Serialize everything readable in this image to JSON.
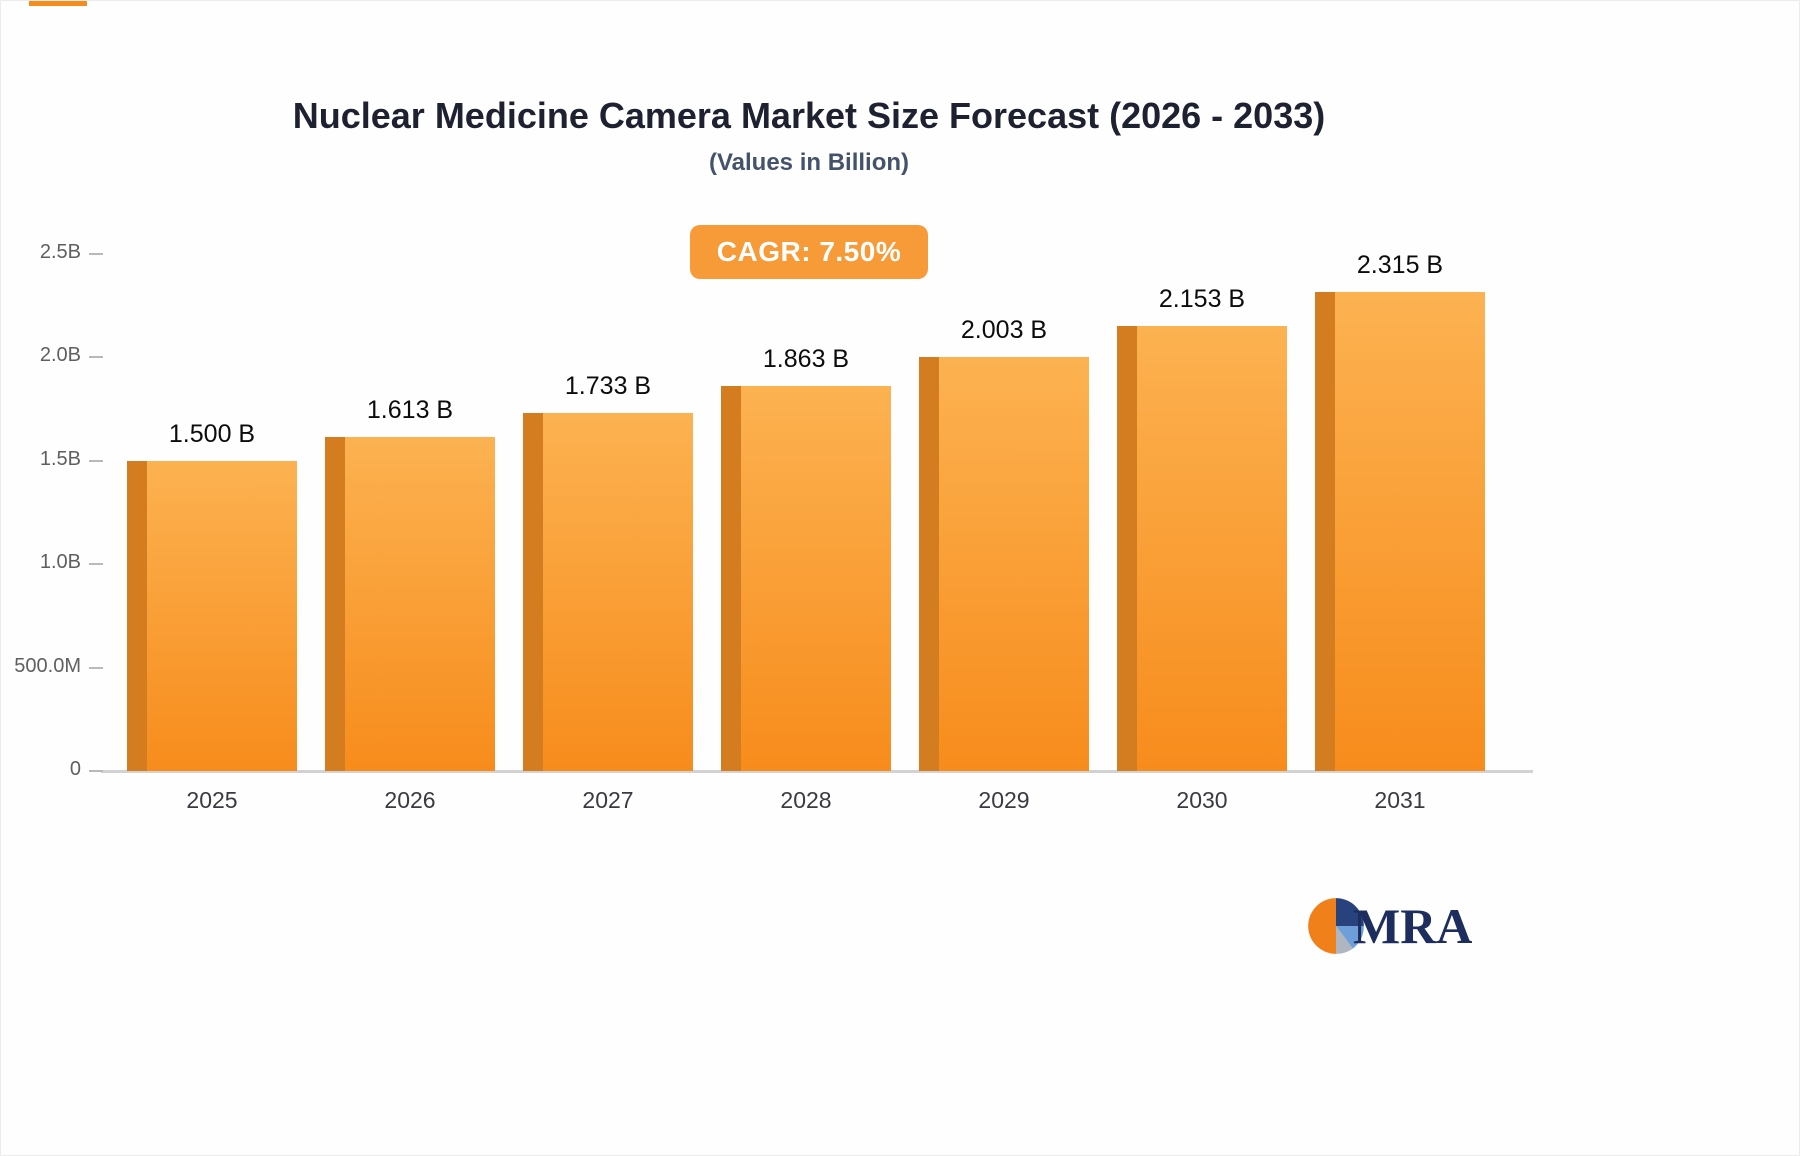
{
  "header": {
    "title": "Nuclear Medicine Camera Market Size Forecast (2026 - 2033)",
    "subtitle": "(Values in Billion)",
    "cagr_badge": "CAGR: 7.50%"
  },
  "chart_data": {
    "type": "bar",
    "title": "Nuclear Medicine Camera Market Size Forecast (2026 - 2033)",
    "subtitle": "(Values in Billion)",
    "annotation": "CAGR: 7.50%",
    "categories": [
      "2025",
      "2026",
      "2027",
      "2028",
      "2029",
      "2030",
      "2031"
    ],
    "values": [
      1.5,
      1.613,
      1.733,
      1.863,
      2.003,
      2.153,
      2.315
    ],
    "value_labels": [
      "1.500 B",
      "1.613 B",
      "1.733 B",
      "1.863 B",
      "2.003 B",
      "2.153 B",
      "2.315 B"
    ],
    "xlabel": "",
    "ylabel": "",
    "ylim": [
      0,
      2.5
    ],
    "ytick_values": [
      2.5,
      2.0,
      1.5,
      1.0,
      0.5,
      0
    ],
    "ytick_labels": [
      "2.5B",
      "2.0B",
      "1.5B",
      "1.0B",
      "500.0M",
      "0"
    ],
    "grid": false,
    "legend_position": "none",
    "bar_colors": {
      "face_top": "#fcb251",
      "face_bottom": "#f78c1c",
      "side": "#d47c20"
    },
    "accent": "#f79a38"
  },
  "logo": {
    "text": "MRA"
  }
}
